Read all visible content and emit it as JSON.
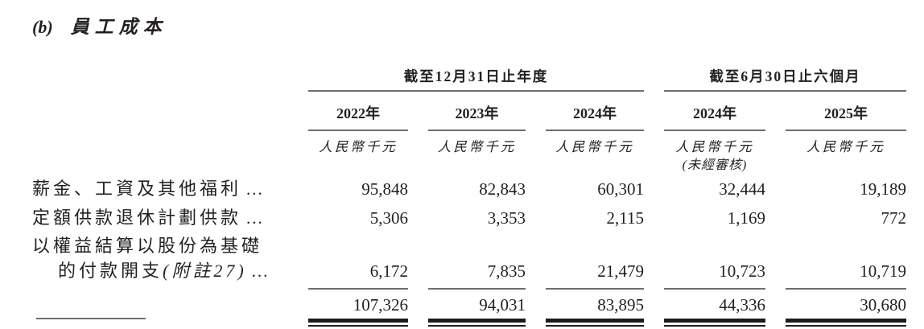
{
  "section": {
    "marker": "(b)",
    "title": "員工成本"
  },
  "table": {
    "groups": [
      {
        "label": "截至12月31日止年度"
      },
      {
        "label": "截至6月30日止六個月"
      }
    ],
    "columns": [
      {
        "year": "2022年",
        "unit": "人民幣千元",
        "note": ""
      },
      {
        "year": "2023年",
        "unit": "人民幣千元",
        "note": ""
      },
      {
        "year": "2024年",
        "unit": "人民幣千元",
        "note": ""
      },
      {
        "year": "2024年",
        "unit": "人民幣千元",
        "note": "(未經審核)"
      },
      {
        "year": "2025年",
        "unit": "人民幣千元",
        "note": ""
      }
    ],
    "rows": [
      {
        "label": "薪金、工資及其他福利",
        "leader": "...",
        "values": [
          "95,848",
          "82,843",
          "60,301",
          "32,444",
          "19,189"
        ]
      },
      {
        "label": "定額供款退休計劃供款",
        "leader": "...",
        "values": [
          "5,306",
          "3,353",
          "2,115",
          "1,169",
          "772"
        ]
      },
      {
        "label_line1": "以權益結算以股份為基礎",
        "label_line2": "的付款開支",
        "label_note": "(附註27)",
        "leader": "...",
        "values": [
          "6,172",
          "7,835",
          "21,479",
          "10,723",
          "10,719"
        ]
      }
    ],
    "totals": [
      "107,326",
      "94,031",
      "83,895",
      "44,336",
      "30,680"
    ]
  },
  "colors": {
    "text": "#231f20",
    "rule_thin": "#6e6e6e",
    "rule_thick": "#1c1c1c"
  }
}
